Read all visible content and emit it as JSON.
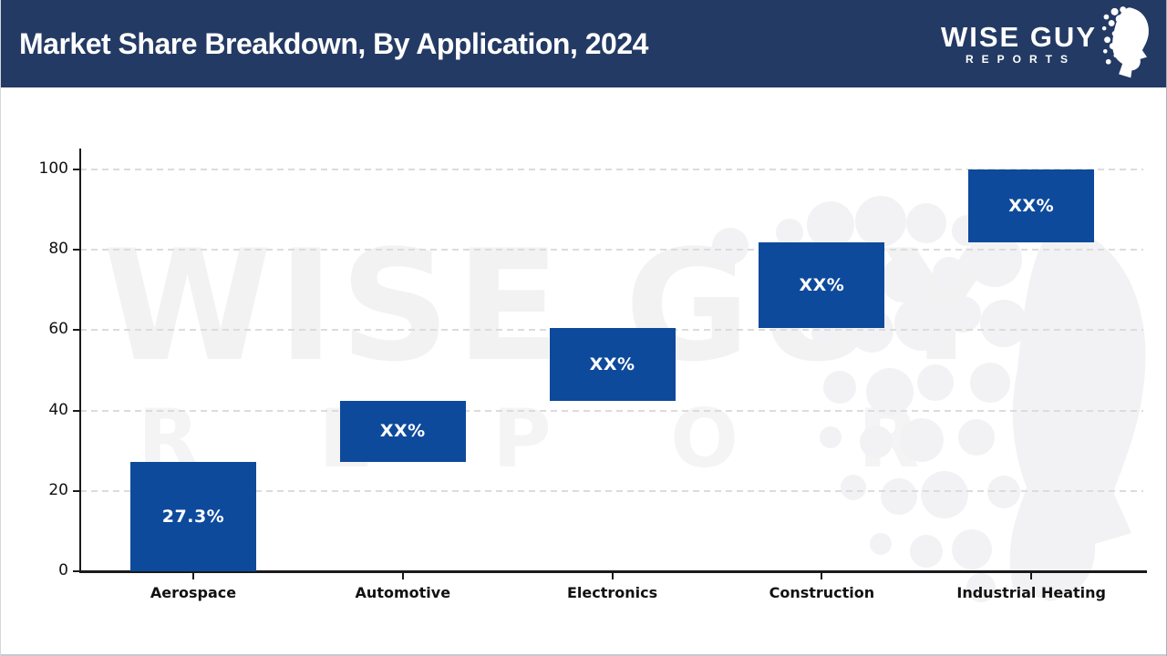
{
  "header": {
    "title": "Market Share Breakdown, By Application, 2024",
    "bg_color": "#233a64",
    "logo": {
      "line1": "WISE GUY",
      "line2": "REPORTS",
      "head_icon": "dotted-head-profile"
    }
  },
  "watermark": {
    "line1": "WISE GUY",
    "line2": "REPORTS"
  },
  "chart_data": {
    "type": "bar",
    "variant": "waterfall",
    "title": "Market Share Breakdown, By Application, 2024",
    "categories": [
      "Aerospace",
      "Automotive",
      "Electronics",
      "Construction",
      "Industrial Heating"
    ],
    "bars": [
      {
        "category": "Aerospace",
        "start": 0,
        "end": 27.3,
        "label": "27.3%"
      },
      {
        "category": "Automotive",
        "start": 27.3,
        "end": 42.4,
        "label": "XX%"
      },
      {
        "category": "Electronics",
        "start": 42.4,
        "end": 60.5,
        "label": "XX%"
      },
      {
        "category": "Construction",
        "start": 60.5,
        "end": 81.8,
        "label": "XX%"
      },
      {
        "category": "Industrial Heating",
        "start": 81.8,
        "end": 100,
        "label": "XX%"
      }
    ],
    "yticks": [
      0,
      20,
      40,
      60,
      80,
      100
    ],
    "ylim": [
      0,
      105
    ],
    "xlabel": "",
    "ylabel": "",
    "grid": "horizontal-dashed",
    "legend": "none",
    "bar_color": "#0d4a9c",
    "bar_label_color": "#ffffff",
    "axis_color": "#1a1a1a"
  }
}
